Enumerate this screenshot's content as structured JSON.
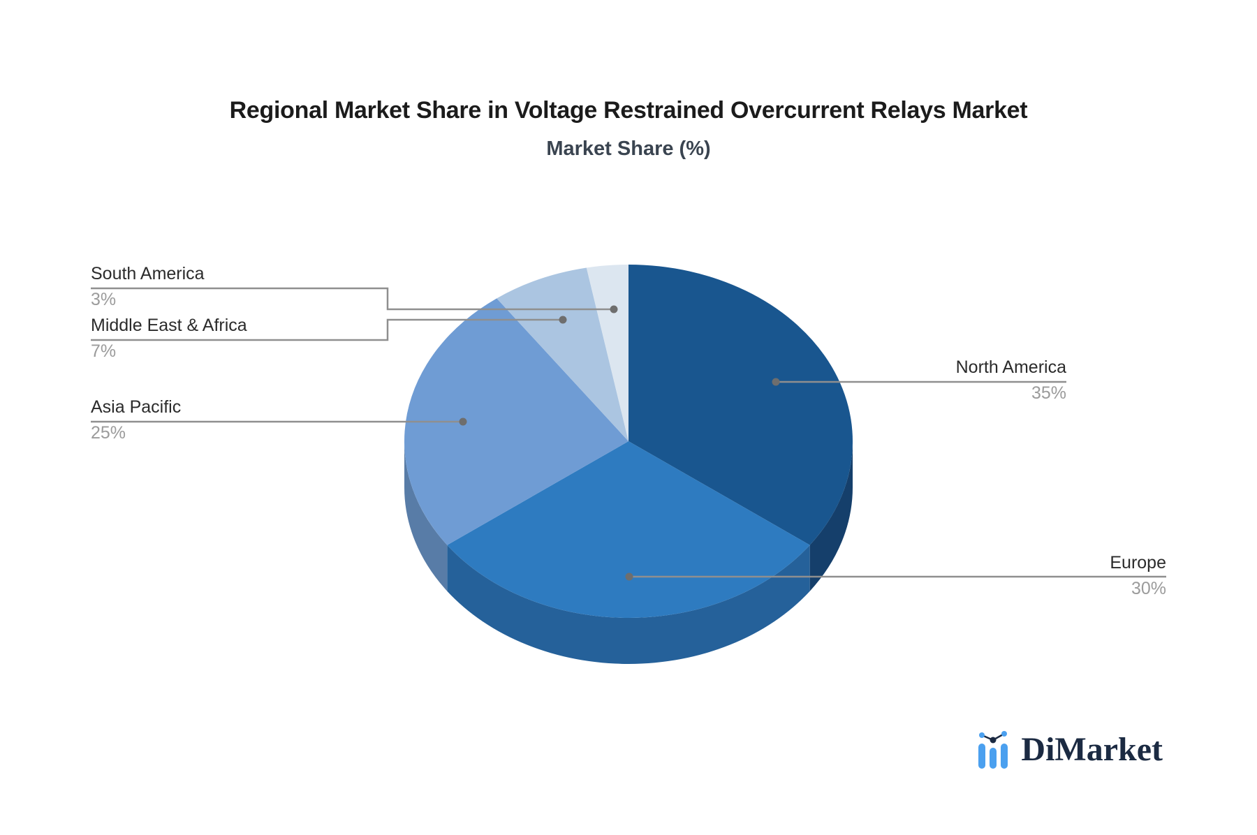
{
  "chart_data": {
    "type": "pie",
    "title": "Regional Market Share in Voltage Restrained Overcurrent Relays Market",
    "subtitle": "Market Share (%)",
    "style": "3d",
    "start_angle_deg": 0,
    "direction": "clockwise",
    "legend_position": "none",
    "slices": [
      {
        "label": "North America",
        "value": 35,
        "value_label": "35%",
        "color": "#19568F",
        "side_color": "#153F6B"
      },
      {
        "label": "Europe",
        "value": 30,
        "value_label": "30%",
        "color": "#2E7BC0",
        "side_color": "#25619A"
      },
      {
        "label": "Asia Pacific",
        "value": 25,
        "value_label": "25%",
        "color": "#6F9CD4",
        "side_color": "#587CA7"
      },
      {
        "label": "Middle East & Africa",
        "value": 7,
        "value_label": "7%",
        "color": "#ABC5E1"
      },
      {
        "label": "South America",
        "value": 3,
        "value_label": "3%",
        "color": "#DCE6F0"
      }
    ]
  },
  "branding": {
    "logo_text": "DiMarket"
  },
  "colors": {
    "background": "#FFFFFF",
    "title": "#1B1B1B",
    "subtitle": "#3A4450",
    "label_text": "#2B2B2B",
    "value_text": "#9B9B9B",
    "connector_line": "#8F8F8F",
    "connector_dot": "#6E6E6E",
    "logo_blue": "#4BA0EF",
    "logo_navy": "#1B2A42"
  }
}
